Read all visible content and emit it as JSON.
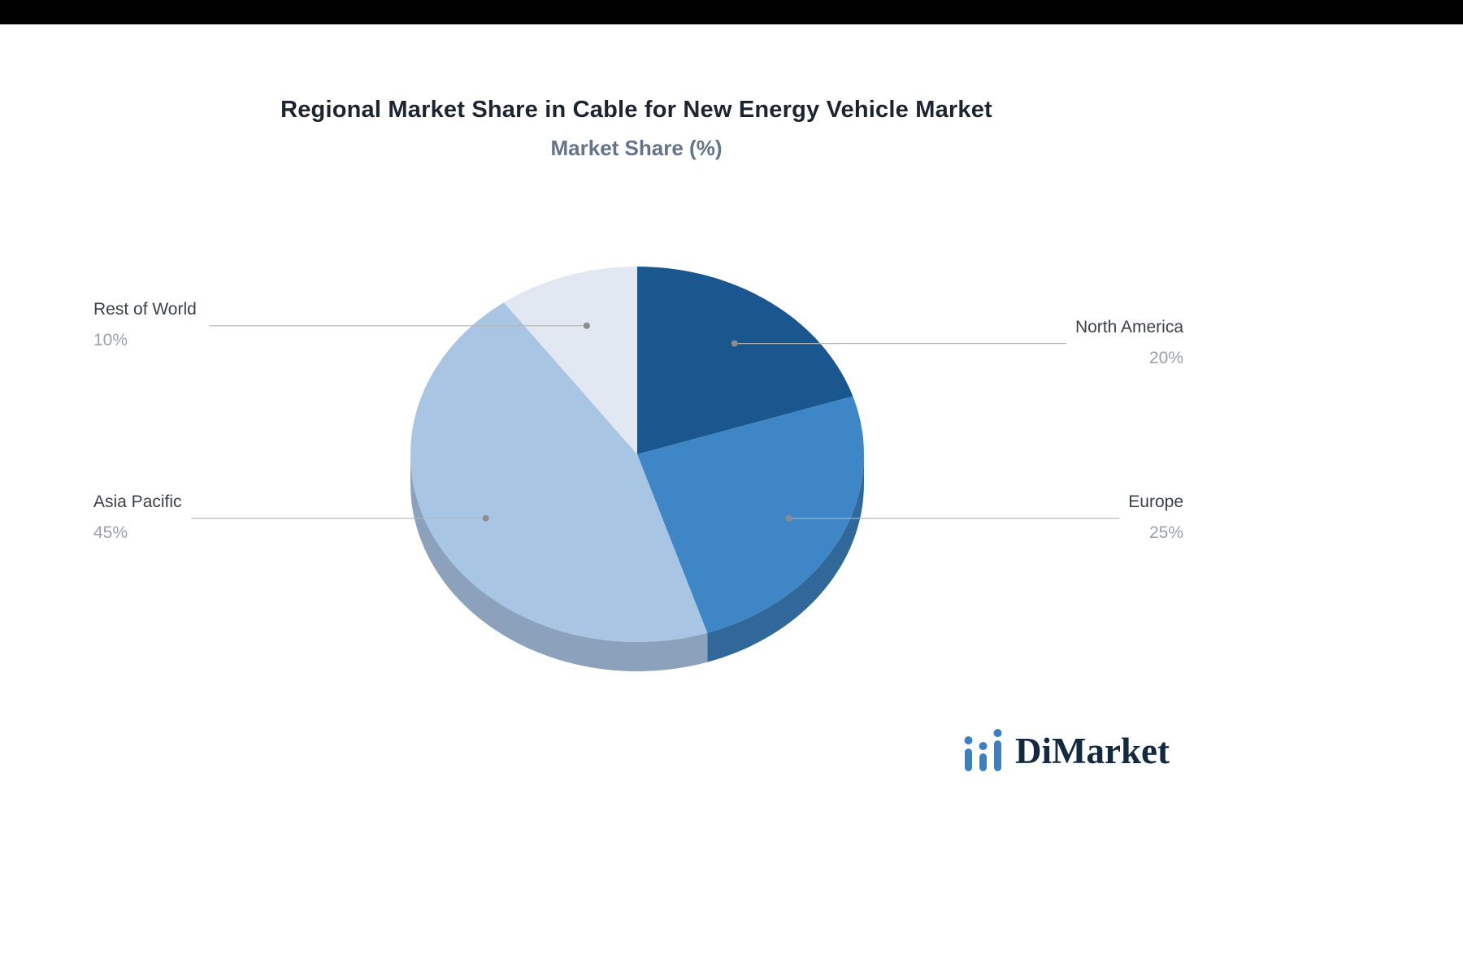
{
  "top_bar": {
    "color": "#000000"
  },
  "chart_data": {
    "type": "pie",
    "title": "Regional Market Share in Cable for New Energy Vehicle Market",
    "subtitle": "Market Share (%)",
    "unit": "%",
    "total": 100,
    "style": "3d",
    "start_angle_deg": 0,
    "direction": "clockwise",
    "legend": "none",
    "labels": "callout",
    "slices": [
      {
        "label": "North America",
        "value": 20,
        "display": "20%",
        "color": "#1b578f",
        "side_color": "#14436e"
      },
      {
        "label": "Europe",
        "value": 25,
        "display": "25%",
        "color": "#3f86c6",
        "side_color": "#30689a"
      },
      {
        "label": "Asia Pacific",
        "value": 45,
        "display": "45%",
        "color": "#a9c5e4",
        "side_color": "#8ba1bc"
      },
      {
        "label": "Rest of World",
        "value": 10,
        "display": "10%",
        "color": "#e2e8f1",
        "side_color": "#bcc4d0"
      }
    ],
    "callout_line_color": "#b5b5b5",
    "callout_dot_color": "#8c8c8c"
  },
  "branding": {
    "name": "DiMarket",
    "text_color": "#13293f",
    "icon_color": "#3b7fc4"
  }
}
